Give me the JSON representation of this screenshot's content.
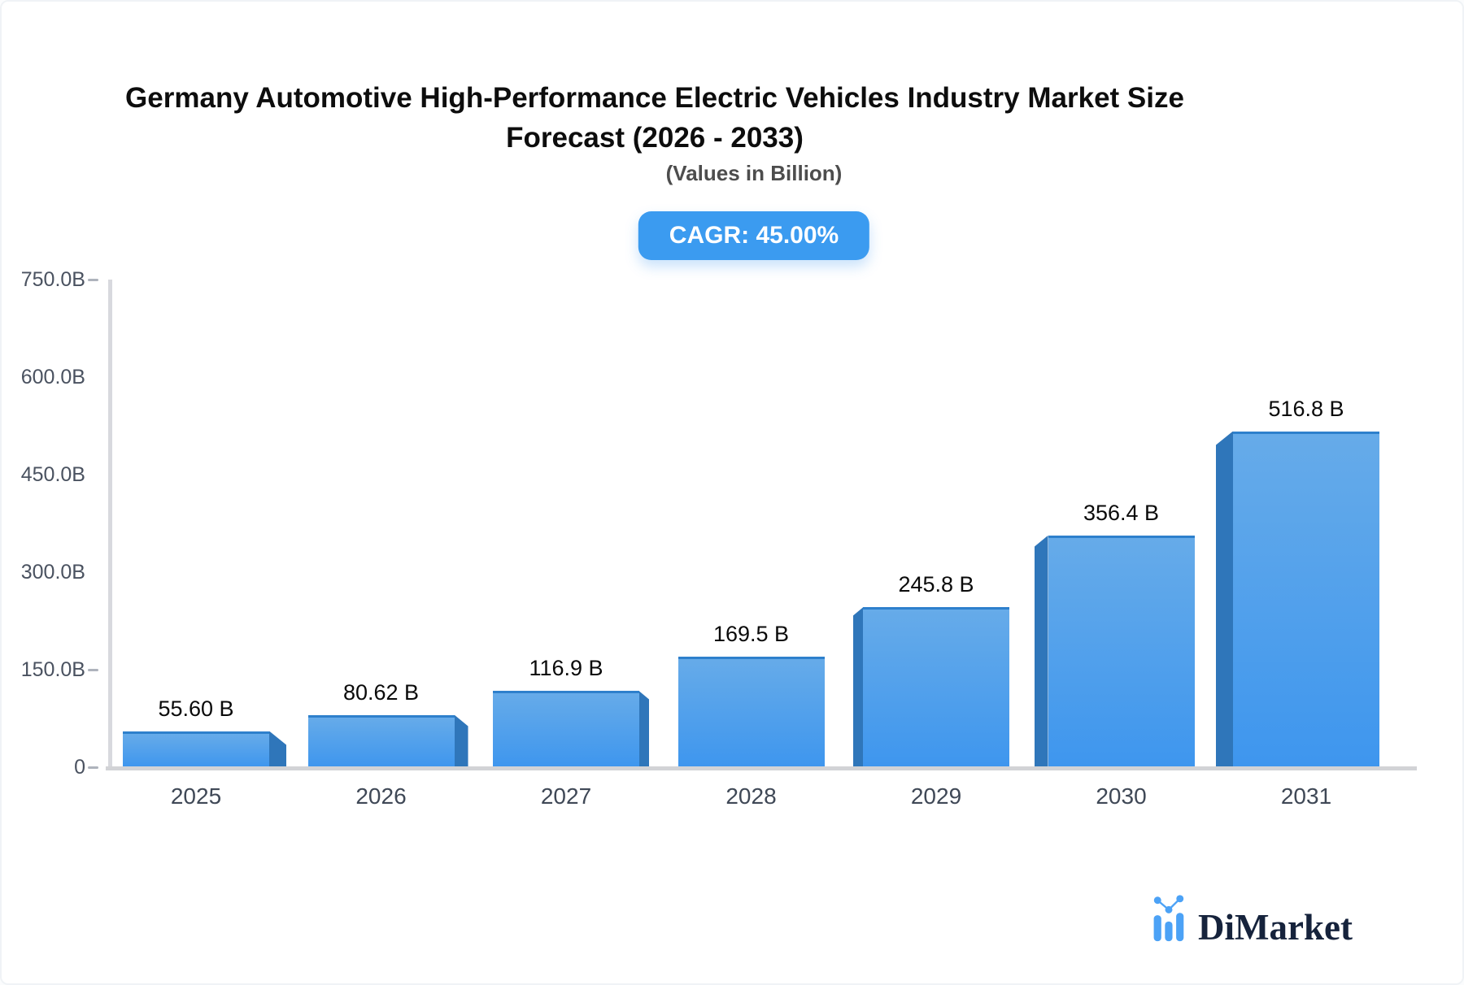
{
  "header": {
    "title_line1": "Germany Automotive High-Performance Electric Vehicles Industry Market Size",
    "title_line2": "Forecast (2026 - 2033)",
    "subtitle": "(Values in Billion)",
    "cagr_badge": "CAGR: 45.00%"
  },
  "chart_data": {
    "type": "bar",
    "title": "Germany Automotive High-Performance Electric Vehicles Industry Market Size Forecast (2026 - 2033)",
    "subtitle": "(Values in Billion)",
    "annotation": "CAGR: 45.00%",
    "categories": [
      "2025",
      "2026",
      "2027",
      "2028",
      "2029",
      "2030",
      "2031"
    ],
    "values": [
      55.6,
      80.62,
      116.9,
      169.5,
      245.8,
      356.4,
      516.8
    ],
    "value_labels": [
      "55.60 B",
      "80.62 B",
      "116.9 B",
      "169.5 B",
      "245.8 B",
      "356.4 B",
      "516.8 B"
    ],
    "y_ticks": [
      {
        "label": "750.0B",
        "value": 750,
        "dash": true
      },
      {
        "label": "600.0B",
        "value": 600,
        "dash": false
      },
      {
        "label": "450.0B",
        "value": 450,
        "dash": false
      },
      {
        "label": "300.0B",
        "value": 300,
        "dash": false
      },
      {
        "label": "150.0B",
        "value": 150,
        "dash": true
      },
      {
        "label": "0",
        "value": 0,
        "dash": true
      }
    ],
    "ylim": [
      0,
      750
    ],
    "grid": false,
    "legend": false,
    "bar_colors": {
      "face_top": "#66abe9",
      "face_bottom": "#3e96ee",
      "face_top_edge": "#2e80cc",
      "side": "#2f76ba"
    }
  },
  "footer": {
    "brand": "DiMarket",
    "logo_icon": "mini-bar-chart-icon",
    "logo_color": "#4ca2f6"
  },
  "colors": {
    "badge_bg": "#3b9bf0",
    "badge_text": "#ffffff",
    "axis_line": "#d8d9de",
    "baseline": "#d2d3d6",
    "axis_text": "#4a5260",
    "title_text": "#0d0d0d",
    "subtitle_text": "#4d4d4d",
    "brand_text": "#16233c"
  }
}
